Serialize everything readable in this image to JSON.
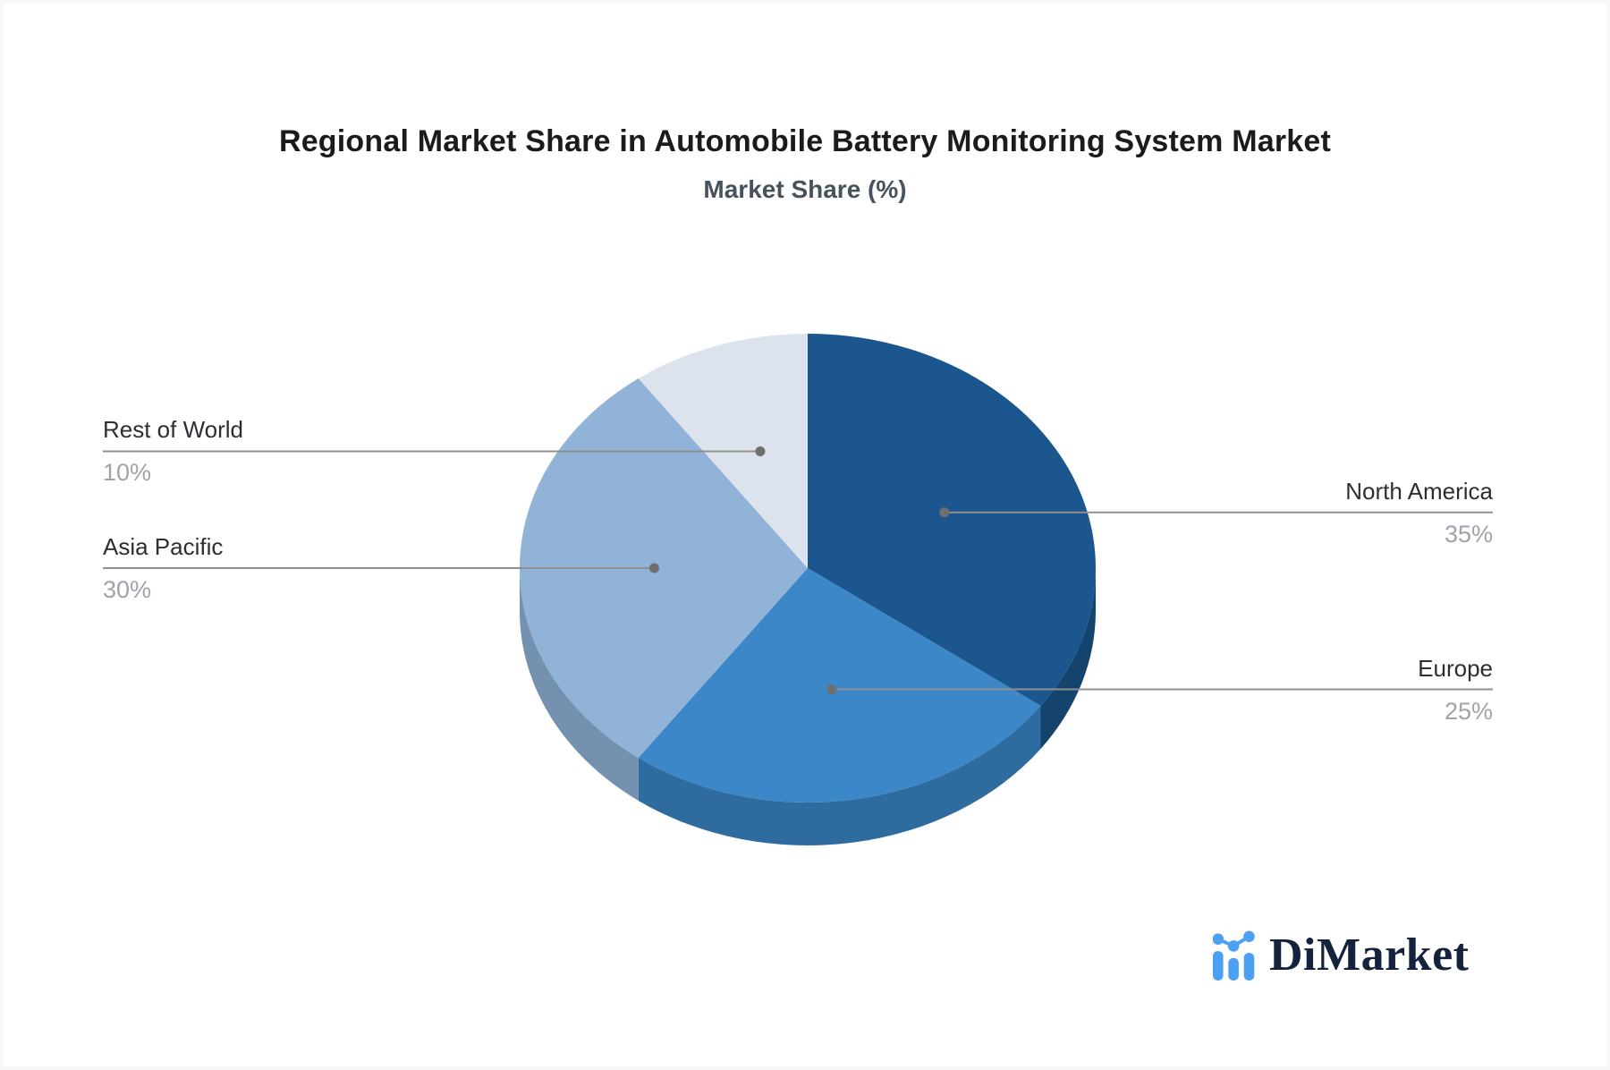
{
  "header": {
    "title": "Regional Market Share in Automobile Battery Monitoring System Market",
    "subtitle": "Market Share (%)"
  },
  "chart_data": {
    "type": "pie",
    "title": "Regional Market Share in Automobile Battery Monitoring System Market",
    "subtitle": "Market Share (%)",
    "unit": "%",
    "style": "3d-pie",
    "start_angle_deg": 0,
    "direction": "clockwise",
    "legend_position": "none",
    "slices": [
      {
        "label": "North America",
        "value": 35,
        "display": "35%",
        "color": "#1B578E",
        "side_color": "#14436E",
        "label_side": "right"
      },
      {
        "label": "Europe",
        "value": 25,
        "display": "25%",
        "color": "#3B87C7",
        "side_color": "#2E6B9E",
        "label_side": "right"
      },
      {
        "label": "Asia Pacific",
        "value": 30,
        "display": "30%",
        "color": "#90B3D7",
        "side_color": "#7492B0",
        "label_side": "left"
      },
      {
        "label": "Rest of World",
        "value": 10,
        "display": "10%",
        "color": "#DCE3ED",
        "side_color": "#B9C4D4",
        "label_side": "left"
      }
    ],
    "label_color": "#2b2f33",
    "value_color": "#9ea4aa",
    "leader_line_color": "#8f8f8f",
    "leader_dot_color": "#6f6f6f"
  },
  "branding": {
    "name": "DiMarket",
    "text_color": "#15223b",
    "accent": "#4BA0F2"
  }
}
